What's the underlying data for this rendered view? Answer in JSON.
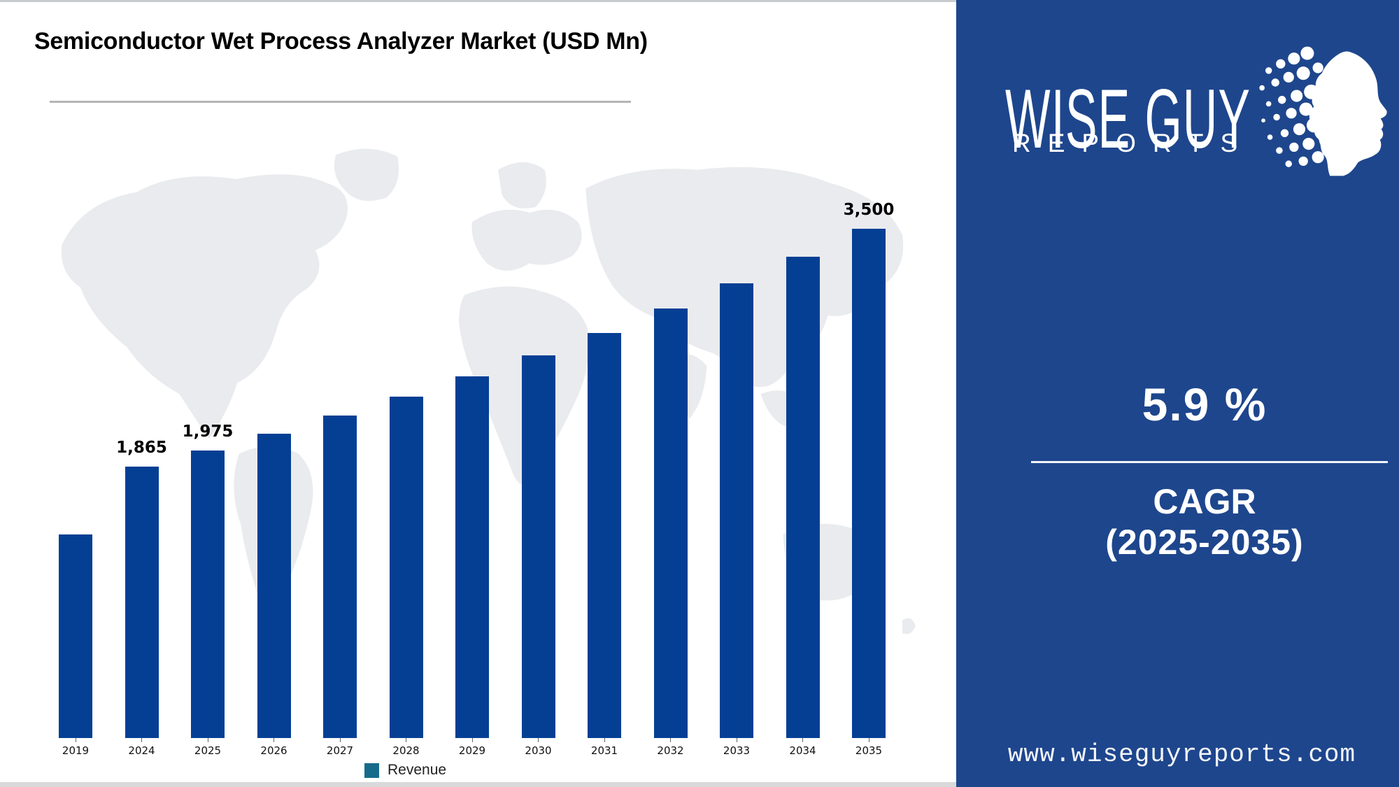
{
  "header": {
    "title": "Semiconductor Wet Process Analyzer Market (USD Mn)"
  },
  "chart_data": {
    "type": "bar",
    "title": "Semiconductor Wet Process Analyzer Market (USD Mn)",
    "xlabel": "",
    "ylabel": "",
    "categories": [
      "2019",
      "2024",
      "2025",
      "2026",
      "2027",
      "2028",
      "2029",
      "2030",
      "2031",
      "2032",
      "2033",
      "2034",
      "2035"
    ],
    "values": [
      1400,
      1865,
      1975,
      2092,
      2215,
      2345,
      2484,
      2630,
      2786,
      2950,
      3124,
      3308,
      3500
    ],
    "bar_labels": [
      "",
      "1,865",
      "1,975",
      "",
      "",
      "",
      "",
      "",
      "",
      "",
      "",
      "",
      "3,500"
    ],
    "series_name": "Revenue",
    "ylim": [
      0,
      3500
    ],
    "grid": false,
    "legend_position": "bottom"
  },
  "legend": {
    "label": "Revenue"
  },
  "panel": {
    "logo_line1": "WISE GUY",
    "logo_line2": "REPORTS",
    "cagr_value": "5.9 %",
    "cagr_label_line1": "CAGR",
    "cagr_label_line2": "(2025-2035)",
    "website": "www.wiseguyreports.com"
  },
  "colors": {
    "bar": "#043f94",
    "panel_background": "#1e468d",
    "legend_swatch": "#176b8a",
    "map_watermark": "#e9ebee",
    "title_text": "#000000",
    "panel_text": "#ffffff"
  }
}
